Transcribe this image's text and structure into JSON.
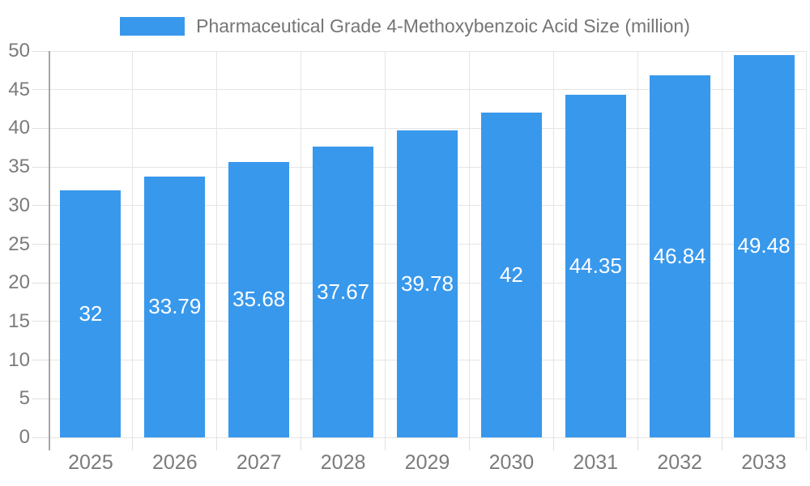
{
  "legend": {
    "label": "Pharmaceutical Grade 4-Methoxybenzoic Acid Size (million)"
  },
  "colors": {
    "bar": "#3898ec",
    "grid": "#e5e5e5",
    "tick": "#e0e0e0",
    "axis_line": "#a6a6a6",
    "axis_text": "#7b7b7b",
    "legend_text": "#757575",
    "data_label_text": "#ffffff"
  },
  "chart_data": {
    "type": "bar",
    "title": "Pharmaceutical Grade 4-Methoxybenzoic Acid Size (million)",
    "xlabel": "",
    "ylabel": "",
    "categories": [
      "2025",
      "2026",
      "2027",
      "2028",
      "2029",
      "2030",
      "2031",
      "2032",
      "2033"
    ],
    "values": [
      32,
      33.79,
      35.68,
      37.67,
      39.78,
      42,
      44.35,
      46.84,
      49.48
    ],
    "data_labels": [
      "32",
      "33.79",
      "35.68",
      "37.67",
      "39.78",
      "42",
      "44.35",
      "46.84",
      "49.48"
    ],
    "series": [
      {
        "name": "Pharmaceutical Grade 4-Methoxybenzoic Acid Size (million)",
        "values": [
          32,
          33.79,
          35.68,
          37.67,
          39.78,
          42,
          44.35,
          46.84,
          49.48
        ]
      }
    ],
    "ylim": [
      0,
      50
    ],
    "yticks": [
      0,
      5,
      10,
      15,
      20,
      25,
      30,
      35,
      40,
      45,
      50
    ],
    "grid": true,
    "legend_position": "top-center",
    "data_label_position": "inside-center"
  }
}
